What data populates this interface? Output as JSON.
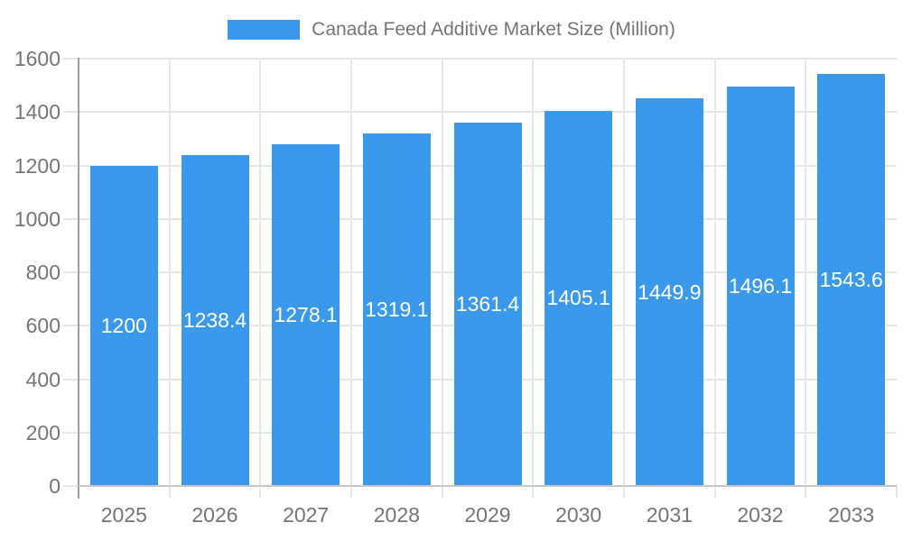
{
  "chart_data": {
    "type": "bar",
    "title": "Canada Feed Additive Market Size (Million)",
    "categories": [
      "2025",
      "2026",
      "2027",
      "2028",
      "2029",
      "2030",
      "2031",
      "2032",
      "2033"
    ],
    "series": [
      {
        "name": "Canada Feed Additive Market Size (Million)",
        "values": [
          1200,
          1238.4,
          1278.1,
          1319.1,
          1361.4,
          1405.1,
          1449.9,
          1496.1,
          1543.6
        ]
      }
    ],
    "value_labels": [
      "1200",
      "1238.4",
      "1278.1",
      "1319.1",
      "1361.4",
      "1405.1",
      "1449.9",
      "1496.1",
      "1543.6"
    ],
    "xlabel": "",
    "ylabel": "",
    "ylim": [
      0,
      1600
    ],
    "yticks": [
      0,
      200,
      400,
      600,
      800,
      1000,
      1200,
      1400,
      1600
    ],
    "grid": true,
    "legend_position": "top",
    "colors": {
      "bar": "#3B99EC",
      "grid": "#E6E6E6",
      "y_axis_line": "#9E9E9E",
      "x_axis_line": "#C6C6C6",
      "axis_text": "#757575",
      "value_label_text": "#FFFFFF",
      "background": "#FFFFFF"
    }
  }
}
